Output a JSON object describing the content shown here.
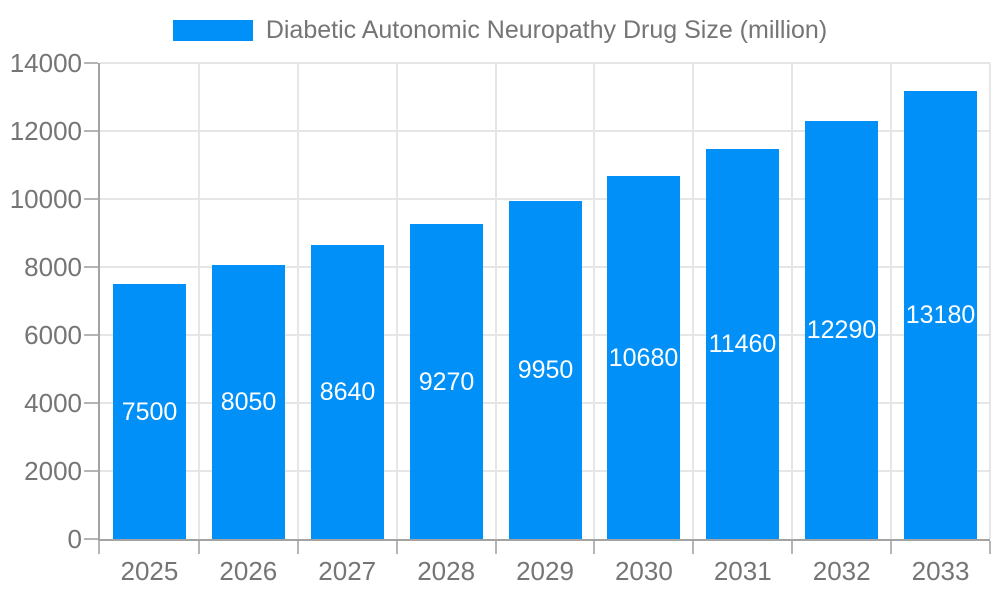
{
  "chart_data": {
    "type": "bar",
    "title": "Diabetic Autonomic Neuropathy Drug Size (million)",
    "legend_position": "top",
    "categories": [
      "2025",
      "2026",
      "2027",
      "2028",
      "2029",
      "2030",
      "2031",
      "2032",
      "2033"
    ],
    "series": [
      {
        "name": "Diabetic Autonomic Neuropathy Drug Size (million)",
        "color": "#0090f8",
        "values": [
          7500,
          8050,
          8640,
          9270,
          9950,
          10680,
          11460,
          12290,
          13180
        ]
      }
    ],
    "data_labels": {
      "visible": true,
      "position": "inside-center",
      "color": "#ffffff"
    },
    "xlabel": "",
    "ylabel": "",
    "ylim": [
      0,
      14000
    ],
    "yticks": [
      0,
      2000,
      4000,
      6000,
      8000,
      10000,
      12000,
      14000
    ],
    "grid": true,
    "colors": {
      "bar": "#0090f8",
      "grid": "#e6e6e6",
      "axis_line": "#a3a3a3",
      "tick_mark": "#b5b5b5",
      "axis_text": "#757575",
      "background": "#ffffff"
    }
  }
}
